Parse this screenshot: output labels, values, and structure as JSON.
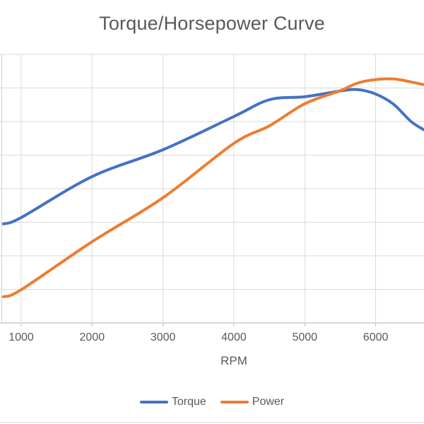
{
  "chart_data": {
    "type": "line",
    "title": "Torque/Horsepower Curve",
    "xlabel": "RPM",
    "x_ticks": [
      1000,
      2000,
      3000,
      4000,
      5000,
      6000
    ],
    "x": [
      750,
      1000,
      2000,
      3000,
      4000,
      4500,
      5000,
      5500,
      5750,
      6000,
      6250,
      6500,
      6700
    ],
    "series": [
      {
        "name": "Torque",
        "color": "#4472C4",
        "values": [
          2.95,
          3.14,
          4.36,
          5.16,
          6.15,
          6.65,
          6.74,
          6.91,
          6.95,
          6.82,
          6.52,
          6.0,
          5.73
        ]
      },
      {
        "name": "Power",
        "color": "#ED7D31",
        "values": [
          0.78,
          0.99,
          2.42,
          3.73,
          5.35,
          5.87,
          6.53,
          6.92,
          7.15,
          7.25,
          7.27,
          7.18,
          7.09
        ]
      }
    ],
    "y_units": "relative gridline units; y-axis tick labels are cropped out of the frame",
    "ylim": [
      0,
      8
    ],
    "xlim_visible": [
      730,
      6690
    ],
    "grid": true,
    "smooth_lines": true,
    "legend_position": "bottom",
    "crossover_rpm_approx": 5500,
    "torque_peak": {
      "rpm": 5750,
      "value_units": 6.95
    },
    "power_peak": {
      "rpm": 6250,
      "value_units": 7.27
    }
  },
  "colors": {
    "gridline": "#D9D9D9",
    "plot_left_border": "#CFCFCF",
    "axis": "#BFBFBF",
    "text": "#595959",
    "background": "#FFFFFF",
    "frame_border": "#D9D9D9"
  }
}
